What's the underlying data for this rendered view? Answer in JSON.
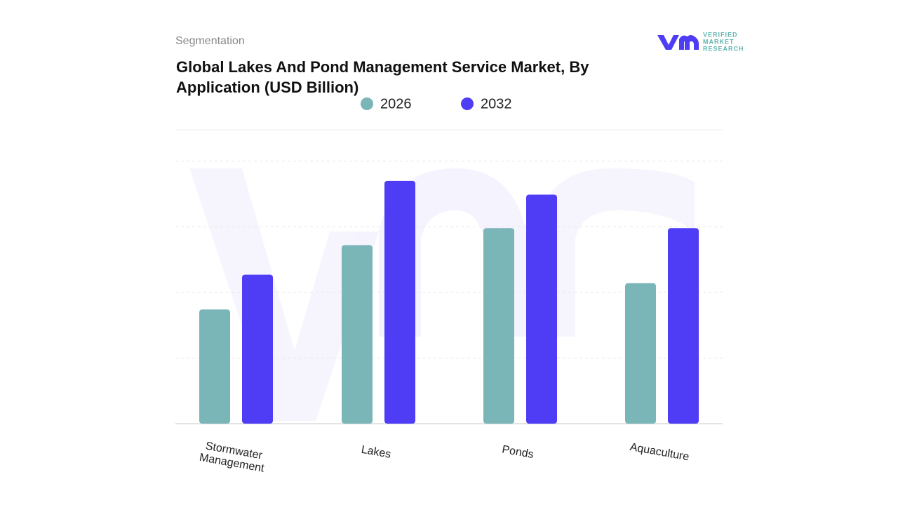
{
  "header": {
    "section": "Segmentation",
    "logo": {
      "line1": "VERIFIED",
      "line2": "MARKET",
      "line3": "RESEARCH"
    }
  },
  "chart_data": {
    "type": "bar",
    "title": "Global Lakes And Pond Management Service Market, By Application (USD Billion)",
    "categories": [
      "Stormwater Management",
      "Lakes",
      "Ponds",
      "Aquaculture"
    ],
    "series": [
      {
        "name": "2026",
        "color": "#7ab5b8",
        "values": [
          1.74,
          2.72,
          2.98,
          2.14
        ]
      },
      {
        "name": "2032",
        "color": "#4f3cf5",
        "values": [
          2.27,
          3.7,
          3.49,
          2.98
        ]
      }
    ],
    "ylim": [
      0,
      4.5
    ],
    "yticks": [
      1,
      2,
      3,
      4
    ],
    "grid": true,
    "legend": "top"
  }
}
